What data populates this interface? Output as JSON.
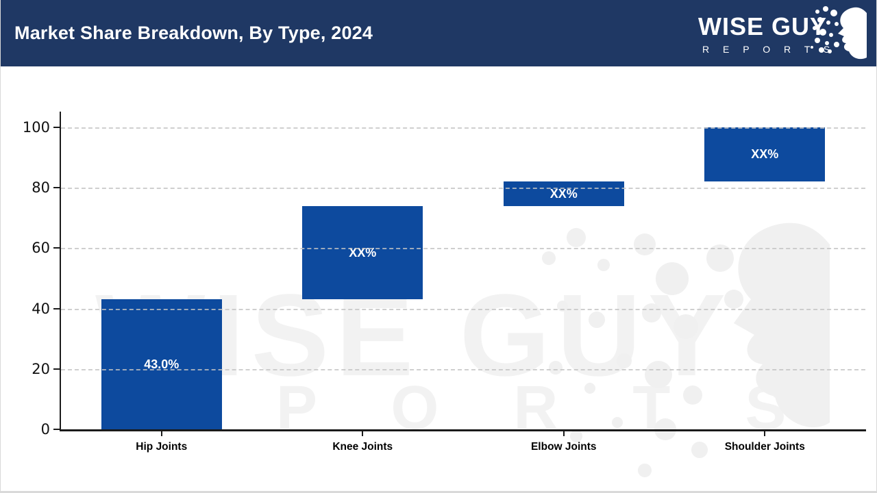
{
  "header": {
    "title": "Market Share Breakdown, By Type, 2024",
    "bg_color": "#1f3864",
    "logo": {
      "line1": "WISE GUY",
      "line2": "R E P O R T S"
    }
  },
  "watermark": {
    "line1": "WISE GUY",
    "line2": "P O R T S"
  },
  "chart_data": {
    "type": "bar",
    "subtype": "waterfall",
    "title": "Market Share Breakdown, By Type, 2024",
    "categories": [
      "Hip Joints",
      "Knee Joints",
      "Elbow Joints",
      "Shoulder Joints"
    ],
    "segments": [
      {
        "category": "Hip Joints",
        "start": 0,
        "end": 43,
        "value": 43,
        "label": "43.0%"
      },
      {
        "category": "Knee Joints",
        "start": 43,
        "end": 74,
        "value": 31,
        "label": "XX%"
      },
      {
        "category": "Elbow Joints",
        "start": 74,
        "end": 82,
        "value": 8,
        "label": "XX%"
      },
      {
        "category": "Shoulder Joints",
        "start": 82,
        "end": 100,
        "value": 18,
        "label": "XX%"
      }
    ],
    "xlabel": "",
    "ylabel": "",
    "ylim": [
      0,
      100
    ],
    "yticks": [
      0,
      20,
      40,
      60,
      80,
      100
    ],
    "grid": "horizontal dashed",
    "legend": "none",
    "bar_color": "#0d4a9e",
    "bar_label_color": "#ffffff",
    "axis_color": "#1a1a1a",
    "gridline_color": "#c8c8c8"
  }
}
